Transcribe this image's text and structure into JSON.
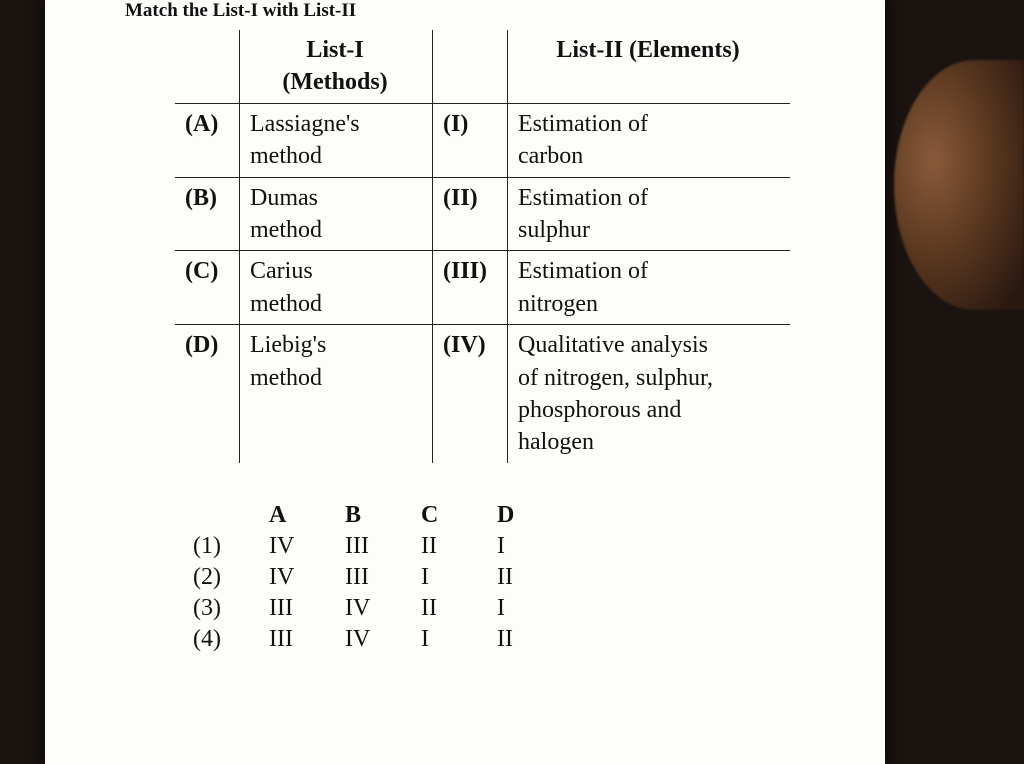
{
  "page": {
    "background_color": "#fdfdfa",
    "text_color": "#111111",
    "header_fragment": "Match the List-I with List-II"
  },
  "match_table": {
    "type": "table",
    "border_color": "#222222",
    "font_family": "Times New Roman",
    "font_size_pt": 18,
    "headers": {
      "left_title_line1": "List-I",
      "left_title_line2": "(Methods)",
      "right_title": "List-II (Elements)"
    },
    "rows": [
      {
        "left_label": "(A)",
        "left_text_line1": "Lassiagne's",
        "left_text_line2": "method",
        "right_label": "(I)",
        "right_text_line1": "Estimation of",
        "right_text_line2": "carbon"
      },
      {
        "left_label": "(B)",
        "left_text_line1": "Dumas",
        "left_text_line2": "method",
        "right_label": "(II)",
        "right_text_line1": "Estimation of",
        "right_text_line2": "sulphur"
      },
      {
        "left_label": "(C)",
        "left_text_line1": "Carius",
        "left_text_line2": "method",
        "right_label": "(III)",
        "right_text_line1": "Estimation of",
        "right_text_line2": "nitrogen"
      },
      {
        "left_label": "(D)",
        "left_text_line1": "Liebig's",
        "left_text_line2": "method",
        "right_label": "(IV)",
        "right_text_line1": "Qualitative analysis",
        "right_text_line2": "of nitrogen, sulphur,",
        "right_text_line3": "phosphorous and",
        "right_text_line4": "halogen"
      }
    ]
  },
  "options": {
    "font_size_pt": 18,
    "header": {
      "A": "A",
      "B": "B",
      "C": "C",
      "D": "D"
    },
    "rows": [
      {
        "label": "(1)",
        "A": "IV",
        "B": "III",
        "C": "II",
        "D": "I"
      },
      {
        "label": "(2)",
        "A": "IV",
        "B": "III",
        "C": "I",
        "D": "II"
      },
      {
        "label": "(3)",
        "A": "III",
        "B": "IV",
        "C": "II",
        "D": "I"
      },
      {
        "label": "(4)",
        "A": "III",
        "B": "IV",
        "C": "I",
        "D": "II"
      }
    ]
  }
}
